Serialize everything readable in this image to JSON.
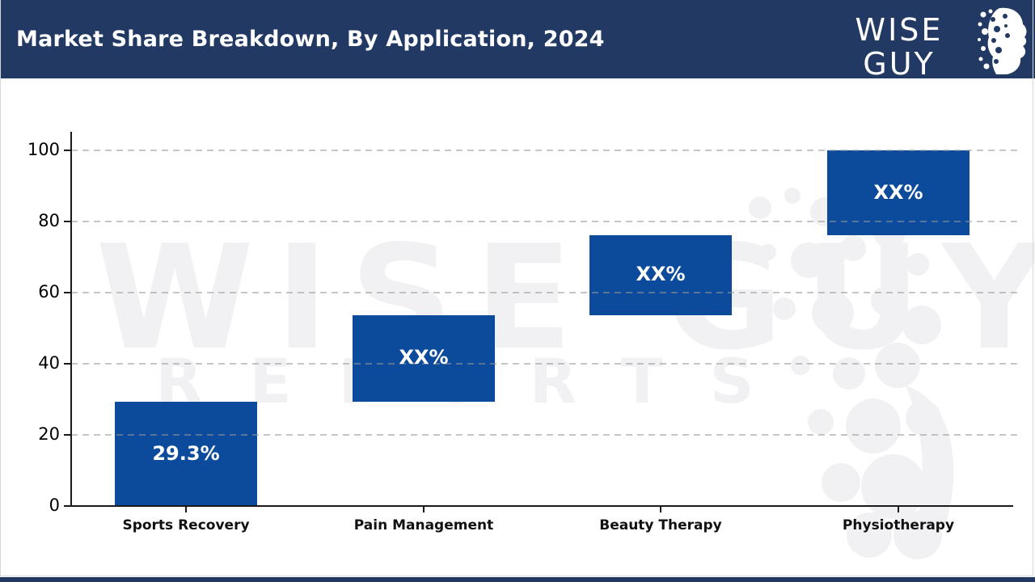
{
  "page": {
    "background": "#FFFFFF",
    "border_color": "#D9D9D9",
    "footer_bar_color": "#223A63"
  },
  "header": {
    "background": "#223A63",
    "title": "Market Share Breakdown, By Application, 2024",
    "logo": {
      "primary": "WISE GUY",
      "secondary": "REPORTS",
      "face_icon": "dotted-head-profile"
    }
  },
  "watermark": {
    "primary": "WISE GUY",
    "secondary": "REPORTS",
    "color": "#F1F1F4"
  },
  "chart_data": {
    "type": "bar",
    "variant": "waterfall",
    "title": "Market Share Breakdown, By Application, 2024",
    "categories": [
      "Sports Recovery",
      "Pain Management",
      "Beauty Therapy",
      "Physiotherapy"
    ],
    "series": [
      {
        "name": "Market Share",
        "segments": [
          {
            "category": "Sports Recovery",
            "start": 0,
            "end": 29.3,
            "label": "29.3%"
          },
          {
            "category": "Pain Management",
            "start": 29.3,
            "end": 53.7,
            "label": "XX%"
          },
          {
            "category": "Beauty Therapy",
            "start": 53.7,
            "end": 76.1,
            "label": "XX%"
          },
          {
            "category": "Physiotherapy",
            "start": 76.1,
            "end": 100.0,
            "label": "XX%"
          }
        ]
      }
    ],
    "ylim": [
      0,
      100
    ],
    "yticks": [
      0,
      20,
      40,
      60,
      80,
      100
    ],
    "ytick_labels": [
      "0",
      "20",
      "40",
      "60",
      "80",
      "100"
    ],
    "xlabel": "",
    "ylabel": "",
    "grid": "horizontal-dashed",
    "legend": "none",
    "bar_color": "#0C4A9C",
    "bar_label_color": "#FFFFFF",
    "axis_color": "#1a1a1a"
  }
}
